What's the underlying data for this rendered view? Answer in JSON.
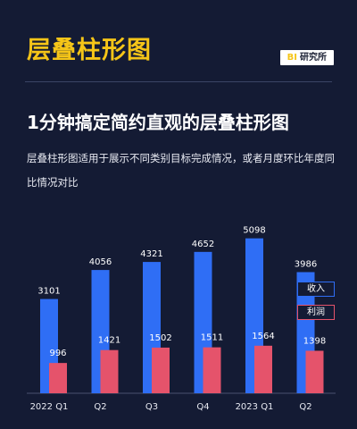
{
  "header": {
    "title": "层叠柱形图",
    "badge_bi": "BI",
    "badge_text": "研究所"
  },
  "main_title": "1分钟搞定简约直观的层叠柱形图",
  "subtitle": "层叠柱形图适用于展示不同类别目标完成情况，或者月度环比年度同比情况对比",
  "colors": {
    "revenue": "#2f6ef5",
    "profit": "#e5536b",
    "accent": "#f5c518"
  },
  "chart_data": {
    "type": "bar",
    "categories": [
      "2022 Q1",
      "Q2",
      "Q3",
      "Q4",
      "2023 Q1",
      "Q2"
    ],
    "series": [
      {
        "name": "收入",
        "values": [
          3101,
          4056,
          4321,
          4652,
          5098,
          3986
        ]
      },
      {
        "name": "利润",
        "values": [
          996,
          1421,
          1502,
          1511,
          1564,
          1398
        ]
      }
    ],
    "ylim": [
      0,
      6000
    ],
    "grid": false,
    "legend": "right"
  }
}
